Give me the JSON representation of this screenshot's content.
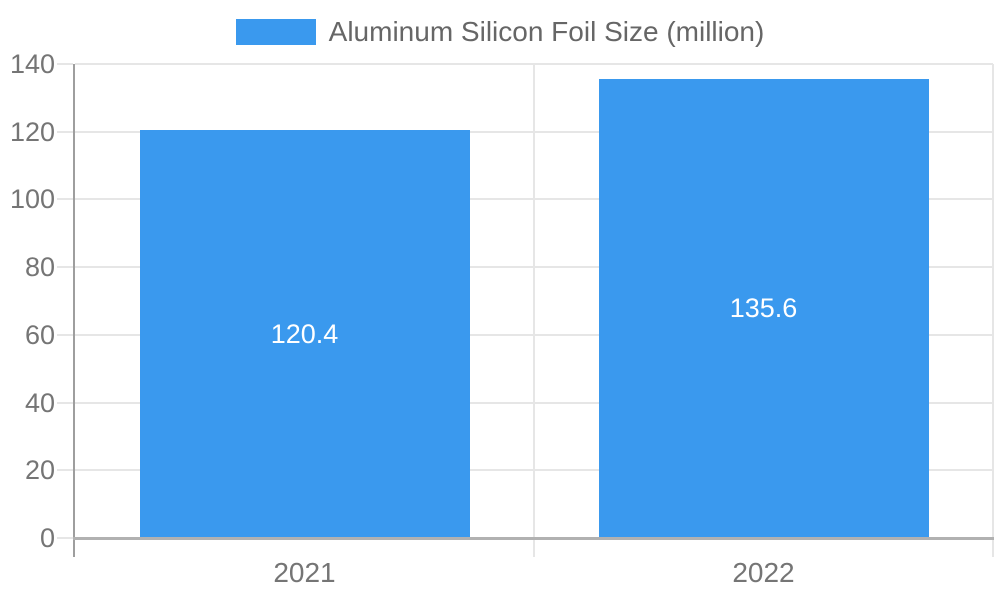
{
  "chart_data": {
    "type": "bar",
    "title": "Aluminum Silicon Foil Size (million)",
    "categories": [
      "2021",
      "2022"
    ],
    "values": [
      120.4,
      135.6
    ],
    "value_labels": [
      "120.4",
      "135.6"
    ],
    "series": [
      {
        "name": "Aluminum Silicon Foil Size (million)",
        "values": [
          120.4,
          135.6
        ]
      }
    ],
    "xlabel": "",
    "ylabel": "",
    "ylim": [
      0,
      140
    ],
    "ytick_step": 20,
    "yticks": [
      0,
      20,
      40,
      60,
      80,
      100,
      120,
      140
    ],
    "grid": "on",
    "legend_position": "top",
    "colors": {
      "bar": "#3A99EE",
      "gridline": "#E6E6E6",
      "y_axis_line": "#9E9E9E",
      "x_axis_line": "#B1B1B1",
      "tick_label": "#757575",
      "legend_text": "#666666",
      "value_label": "#FFFFFF",
      "background": "#FFFFFF"
    }
  }
}
